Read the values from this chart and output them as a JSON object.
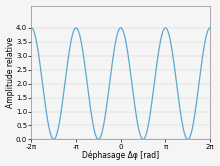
{
  "title": "",
  "xlabel": "Déphasage Δφ [rad]",
  "ylabel": "Amplitude relative",
  "xlim": [
    -6.283185307,
    6.283185307
  ],
  "ylim": [
    0,
    4.8
  ],
  "yticks": [
    0.0,
    0.5,
    1.0,
    1.5,
    2.0,
    2.5,
    3.0,
    3.5,
    4.0
  ],
  "xticks": [
    -6.283185307,
    -3.141592653,
    0,
    3.141592653,
    6.283185307
  ],
  "xtick_labels": [
    "-2π",
    "-π",
    "0",
    "π",
    "2π"
  ],
  "line_color": "#5ba8d0",
  "background_color": "#f5f5f5",
  "line_width": 0.9,
  "amplitude_max": 4.0
}
